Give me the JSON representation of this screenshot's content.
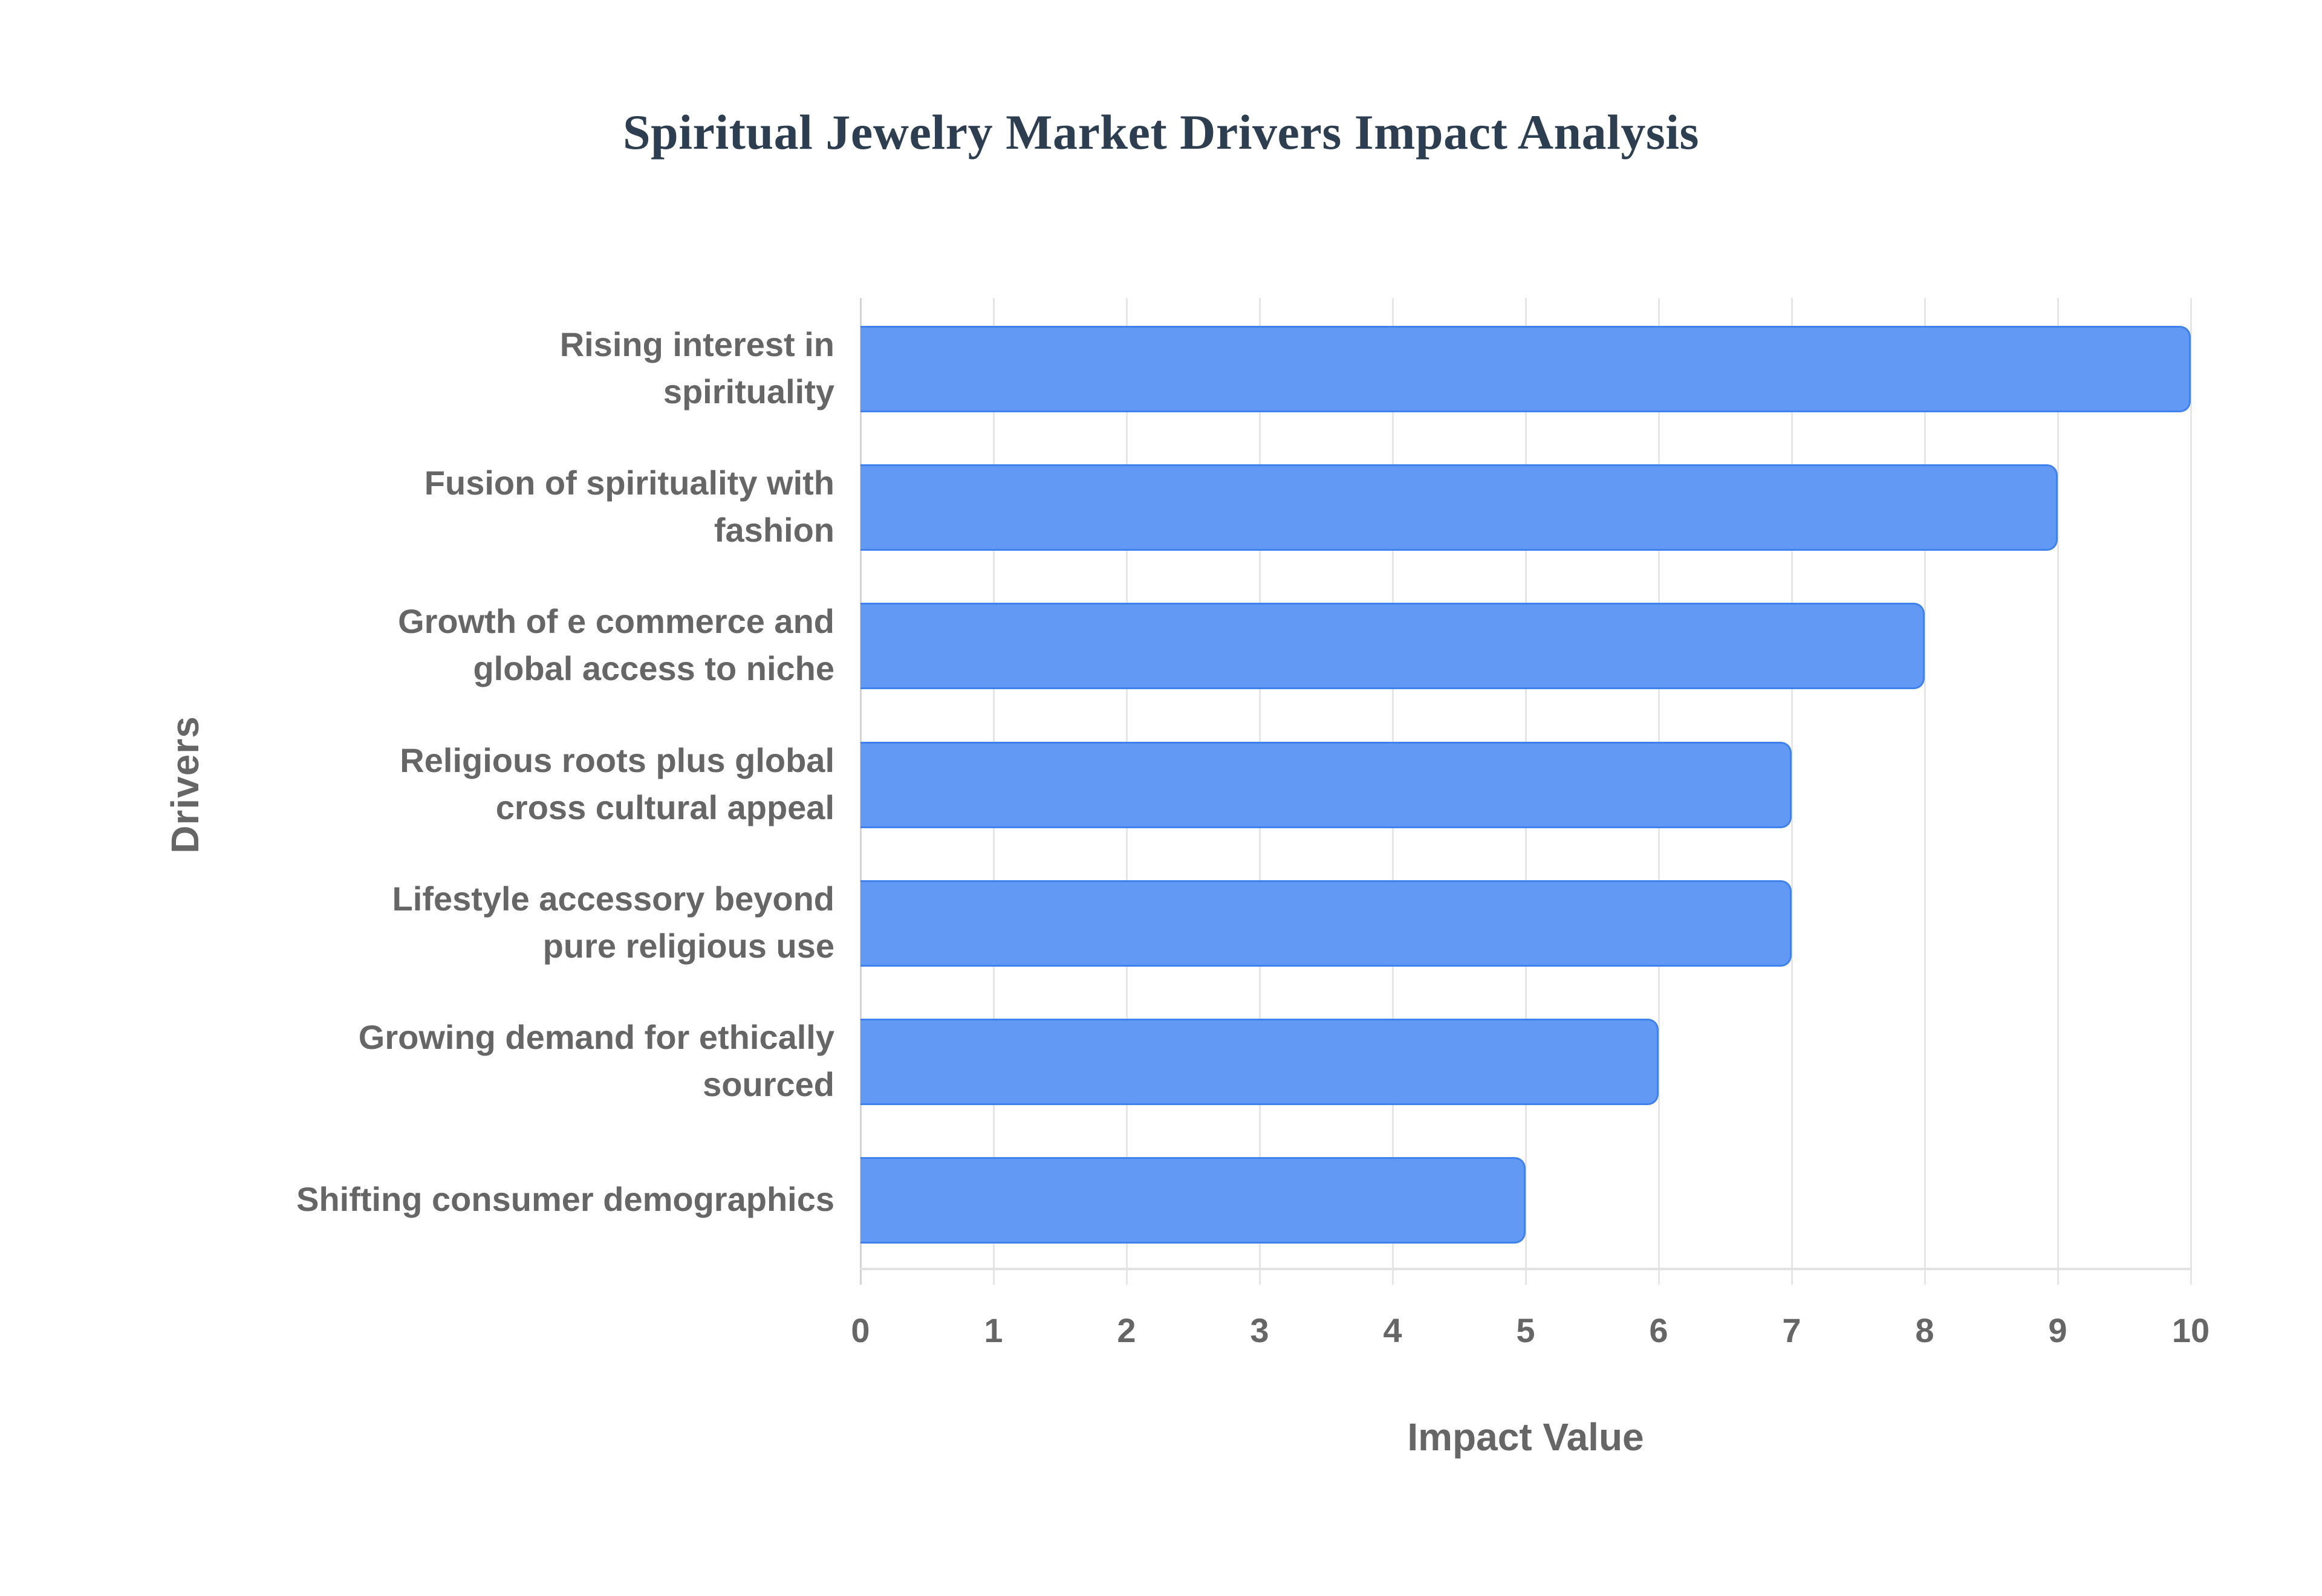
{
  "title": "Spiritual Jewelry Market Drivers Impact Analysis",
  "colors": {
    "bar_fill": "#6199f5",
    "bar_border": "#3f82ee",
    "title": "#2c3e50",
    "axis_text": "#666666",
    "grid": "#e6e6e6"
  },
  "x_axis": {
    "title": "Impact Value",
    "ticks": [
      "0",
      "1",
      "2",
      "3",
      "4",
      "5",
      "6",
      "7",
      "8",
      "9",
      "10"
    ]
  },
  "y_axis": {
    "title": "Drivers"
  },
  "bars": [
    {
      "label_line1": "Rising interest in",
      "label_line2": "spirituality",
      "value": 10
    },
    {
      "label_line1": "Fusion of spirituality with",
      "label_line2": "fashion",
      "value": 9
    },
    {
      "label_line1": "Growth of e commerce and",
      "label_line2": "global access to niche",
      "value": 8
    },
    {
      "label_line1": "Religious roots plus global",
      "label_line2": "cross cultural appeal",
      "value": 7
    },
    {
      "label_line1": "Lifestyle accessory beyond",
      "label_line2": "pure religious use",
      "value": 7
    },
    {
      "label_line1": "Growing demand for ethically",
      "label_line2": "sourced",
      "value": 6
    },
    {
      "label_line1": "Shifting consumer demographics",
      "label_line2": "",
      "value": 5
    }
  ],
  "chart_data": {
    "type": "bar",
    "orientation": "horizontal",
    "title": "Spiritual Jewelry Market Drivers Impact Analysis",
    "xlabel": "Impact Value",
    "ylabel": "Drivers",
    "categories": [
      "Rising interest in spirituality",
      "Fusion of spirituality with fashion",
      "Growth of e commerce and global access to niche",
      "Religious roots plus global cross cultural appeal",
      "Lifestyle accessory beyond pure religious use",
      "Growing demand for ethically sourced",
      "Shifting consumer demographics"
    ],
    "values": [
      10,
      9,
      8,
      7,
      7,
      6,
      5
    ],
    "xlim": [
      0,
      10
    ],
    "x_ticks": [
      0,
      1,
      2,
      3,
      4,
      5,
      6,
      7,
      8,
      9,
      10
    ],
    "grid": {
      "vertical": true,
      "horizontal": false
    },
    "legend": "none",
    "bar_color": "#6199f5"
  }
}
